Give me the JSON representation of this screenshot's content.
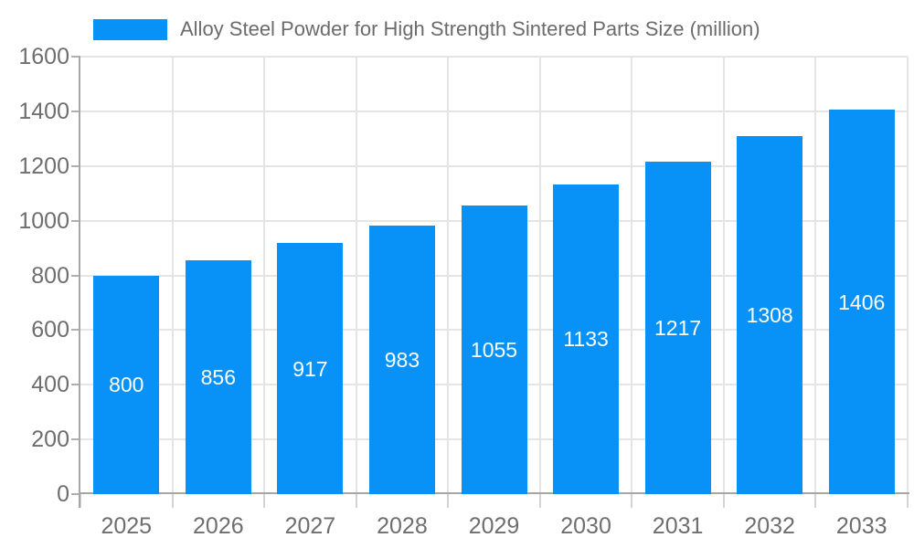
{
  "chart_data": {
    "type": "bar",
    "title": "Alloy Steel Powder for High Strength Sintered Parts Size (million)",
    "categories": [
      "2025",
      "2026",
      "2027",
      "2028",
      "2029",
      "2030",
      "2031",
      "2032",
      "2033"
    ],
    "series": [
      {
        "name": "Alloy Steel Powder for High Strength Sintered Parts Size (million)",
        "values": [
          800,
          856,
          917,
          983,
          1055,
          1133,
          1217,
          1308,
          1406
        ]
      }
    ],
    "value_labels": [
      "800",
      "856",
      "917",
      "983",
      "1055",
      "1133",
      "1217",
      "1308",
      "1406"
    ],
    "xlabel": "",
    "ylabel": "",
    "ylim": [
      0,
      1600
    ],
    "yticks": [
      0,
      200,
      400,
      600,
      800,
      1000,
      1200,
      1400,
      1600
    ],
    "grid": true,
    "legend_position": "top-center",
    "colors": {
      "bar": "#0892f7",
      "value_label": "#ffffff",
      "grid": "#e5e5e5",
      "axis": "#a6a6a6",
      "x_tick": "#d4d4d4",
      "y_tick": "#b0b0b0",
      "tick_text": "#6e6e6e",
      "legend_text": "#6b6b6b"
    }
  }
}
